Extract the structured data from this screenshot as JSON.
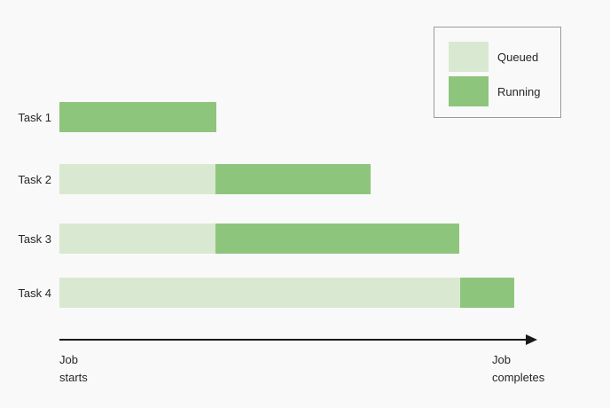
{
  "colors": {
    "background": "#f9f9f9",
    "queued": "#d9e9d1",
    "running": "#8ec57d",
    "axis": "#1a1a1a",
    "text": "#262626",
    "legend_border": "#9b9b9b"
  },
  "legend": {
    "items": [
      {
        "label": "Queued",
        "color": "#d9e9d1"
      },
      {
        "label": "Running",
        "color": "#8ec57d"
      }
    ]
  },
  "chart_data": {
    "type": "bar",
    "variant": "gantt-timeline",
    "title": "",
    "legend_position": "top-right",
    "grid": false,
    "categories": [
      "Task 1",
      "Task 2",
      "Task 3",
      "Task 4"
    ],
    "x_axis": {
      "unit": "percent-of-job-duration",
      "range": [
        0,
        100
      ],
      "arrow": true,
      "start_label_lines": [
        "Job",
        "starts"
      ],
      "end_label_lines": [
        "Job",
        "completes"
      ]
    },
    "series": [
      {
        "name": "Queued",
        "color": "#d9e9d1",
        "spans_pct": [
          [
            0,
            0
          ],
          [
            0,
            32.7
          ],
          [
            0,
            32.7
          ],
          [
            0,
            84.0
          ]
        ]
      },
      {
        "name": "Running",
        "color": "#8ec57d",
        "spans_pct": [
          [
            0,
            32.9
          ],
          [
            32.7,
            65.2
          ],
          [
            32.7,
            83.8
          ],
          [
            84.0,
            95.4
          ]
        ]
      }
    ]
  }
}
